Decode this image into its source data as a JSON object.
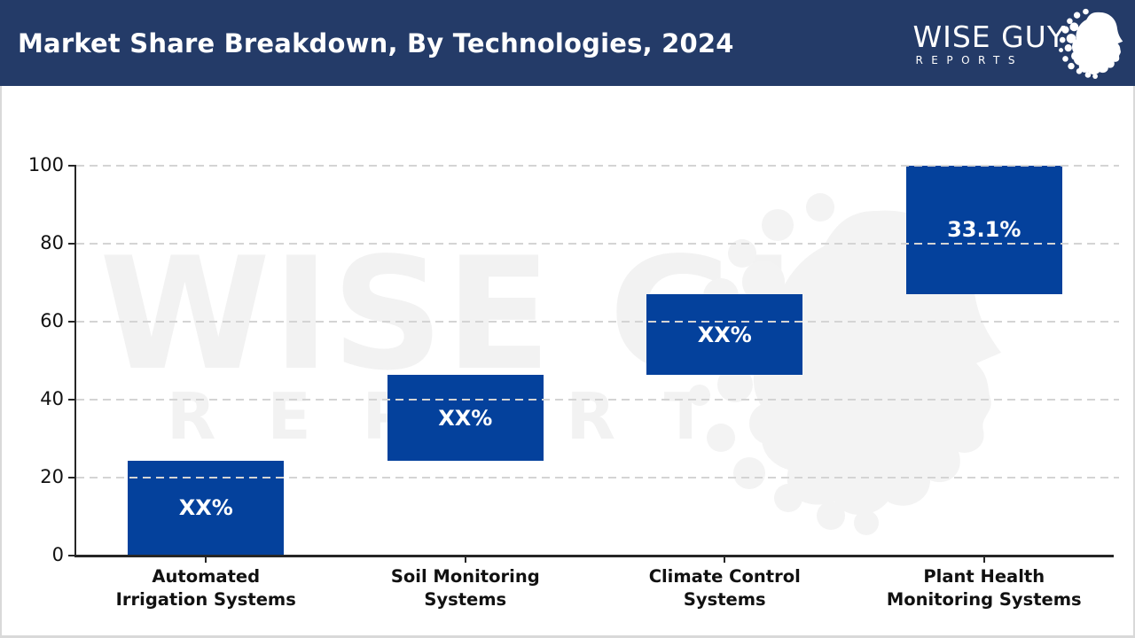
{
  "header": {
    "title": "Market Share Breakdown, By Technologies, 2024",
    "bg_color": "#243b68",
    "logo": {
      "line1": "WISE GUY",
      "line2": "REPORTS"
    }
  },
  "watermark": {
    "line1": "WISE GUY",
    "line2": "REPORTS"
  },
  "chart_data": {
    "type": "bar",
    "subtype": "floating-segment-waterfall",
    "title": "Market Share Breakdown, By Technologies, 2024",
    "categories": [
      "Automated\nIrrigation Systems",
      "Soil Monitoring\nSystems",
      "Climate Control\nSystems",
      "Plant Health\nMonitoring Systems"
    ],
    "segments": [
      {
        "start": 0,
        "end": 24.1,
        "label": "XX%"
      },
      {
        "start": 24.1,
        "end": 46.2,
        "label": "XX%"
      },
      {
        "start": 46.2,
        "end": 66.9,
        "label": "XX%"
      },
      {
        "start": 66.9,
        "end": 100,
        "label": "33.1%"
      }
    ],
    "ylim": [
      0,
      100
    ],
    "yticks": [
      0,
      20,
      40,
      60,
      80,
      100
    ],
    "xlabel": "",
    "ylabel": "",
    "grid": {
      "axis": "y",
      "style": "dashed",
      "color": "#d4d4d4"
    },
    "legend": "none",
    "bar_color": "#04419c",
    "bar_label_color": "#ffffff"
  }
}
